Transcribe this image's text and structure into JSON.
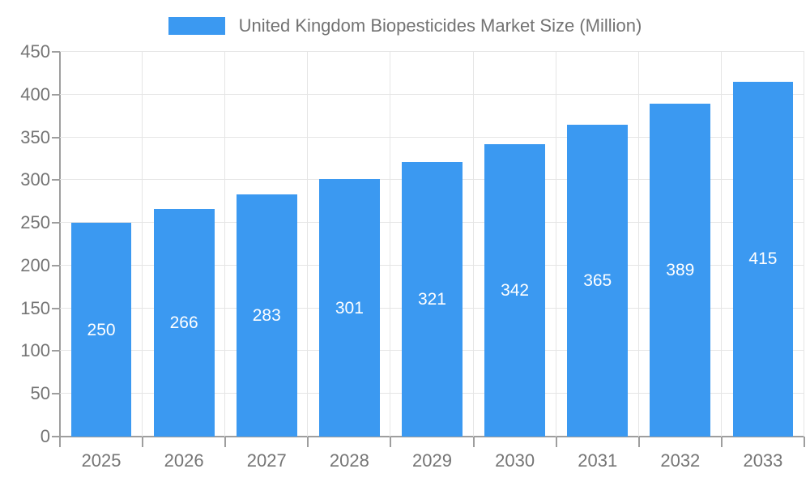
{
  "legend": {
    "label": "United Kingdom Biopesticides Market Size (Million)"
  },
  "chart_data": {
    "type": "bar",
    "title": "United Kingdom Biopesticides Market Size (Million)",
    "categories": [
      "2025",
      "2026",
      "2027",
      "2028",
      "2029",
      "2030",
      "2031",
      "2032",
      "2033"
    ],
    "values": [
      250,
      266,
      283,
      301,
      321,
      342,
      365,
      389,
      415
    ],
    "xlabel": "",
    "ylabel": "",
    "ylim": [
      0,
      450
    ],
    "ytick_step": 50,
    "grid": true,
    "legend_position": "top-center",
    "value_labels": "inside-center"
  },
  "colors": {
    "bar": "#3b99f1",
    "grid": "#e5e5e5",
    "axis": "#9e9e9e",
    "tick_text": "#757575",
    "title_text": "#737373",
    "value_text": "#ffffff",
    "background": "#ffffff"
  }
}
